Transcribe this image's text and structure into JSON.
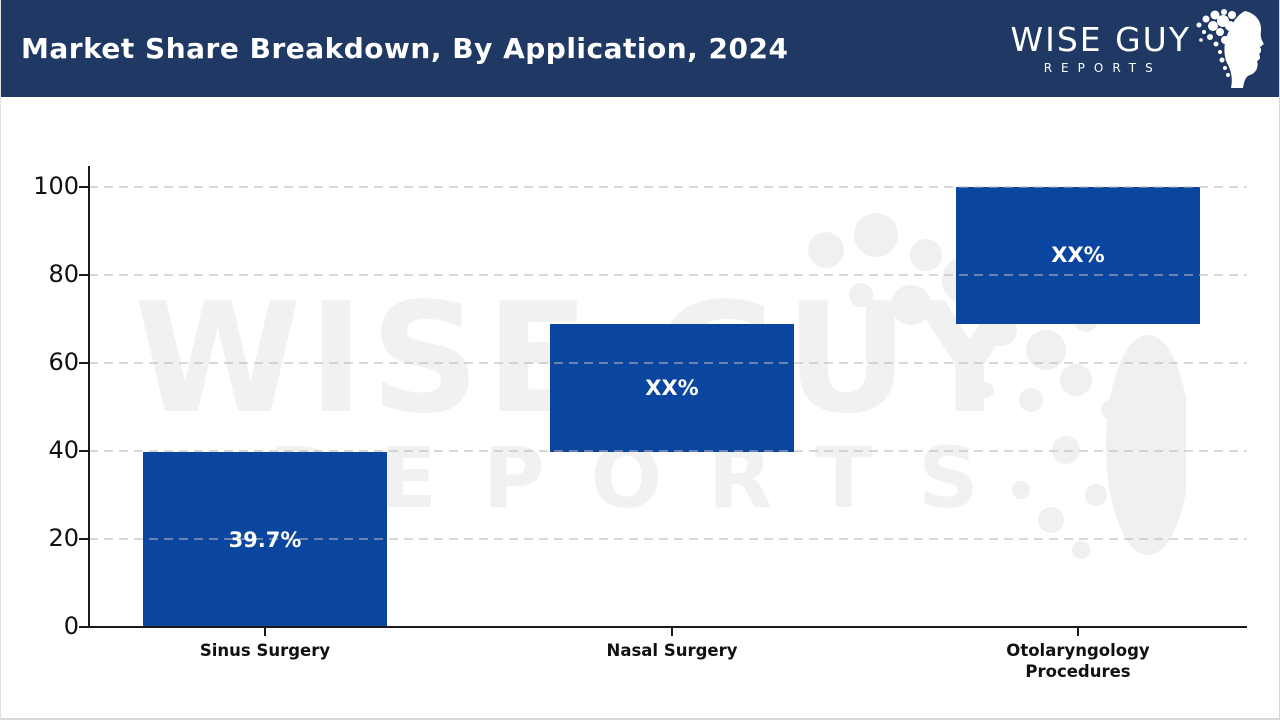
{
  "header": {
    "title": "Market Share Breakdown, By Application, 2024",
    "logo": {
      "line1": "WISE GUY",
      "line2": "REPORTS"
    }
  },
  "watermark": {
    "line1": "WISE GUY",
    "line2": "REPORTS"
  },
  "chart_data": {
    "type": "bar",
    "subtype": "floating-segment waterfall of market share percentages",
    "title": "Market Share Breakdown, By Application, 2024",
    "categories": [
      "Sinus Surgery",
      "Nasal Surgery",
      "Otolaryngology Procedures"
    ],
    "segments": [
      {
        "category": "Sinus Surgery",
        "start": 0,
        "end": 39.7,
        "label": "39.7%"
      },
      {
        "category": "Nasal Surgery",
        "start": 39.7,
        "end": 68.9,
        "label": "XX%"
      },
      {
        "category": "Otolaryngology Procedures",
        "start": 68.9,
        "end": 100,
        "label": "XX%"
      }
    ],
    "y_ticks": [
      0,
      20,
      40,
      60,
      80,
      100
    ],
    "ylim": [
      0,
      100
    ],
    "grid": "dashed horizontal gridlines drawn over bars",
    "legend": "none",
    "bar_color": "#0a45a0",
    "bar_label_color": "#ffffff",
    "axis_color": "#1a1a1a",
    "header_color": "#1f3864",
    "watermark_color": "#f1f1f1"
  }
}
